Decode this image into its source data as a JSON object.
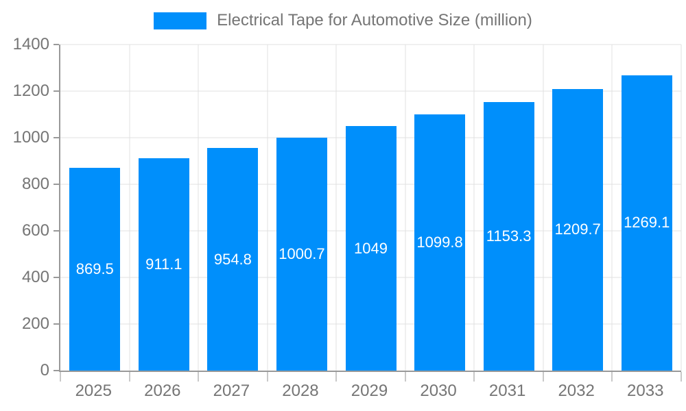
{
  "chart_data": {
    "type": "bar",
    "title": "Electrical Tape for Automotive Size (million)",
    "categories": [
      "2025",
      "2026",
      "2027",
      "2028",
      "2029",
      "2030",
      "2031",
      "2032",
      "2033"
    ],
    "values": [
      869.5,
      911.1,
      954.8,
      1000.7,
      1049,
      1099.8,
      1153.3,
      1209.7,
      1269.1
    ],
    "value_labels": [
      "869.5",
      "911.1",
      "954.8",
      "1000.7",
      "1049",
      "1099.8",
      "1153.3",
      "1209.7",
      "1269.1"
    ],
    "xlabel": "",
    "ylabel": "",
    "ylim": [
      0,
      1400
    ],
    "yticks": [
      0,
      200,
      400,
      600,
      800,
      1000,
      1200,
      1400
    ],
    "grid": true,
    "legend_position": "top",
    "value_label_position": "inside-center",
    "colors": {
      "bar": "#008FFB",
      "value_label": "#ffffff",
      "axis": "#999999",
      "grid": "#e0e0e0",
      "minor_tick": "#c9c9c9",
      "tick_label": "#757575"
    }
  }
}
